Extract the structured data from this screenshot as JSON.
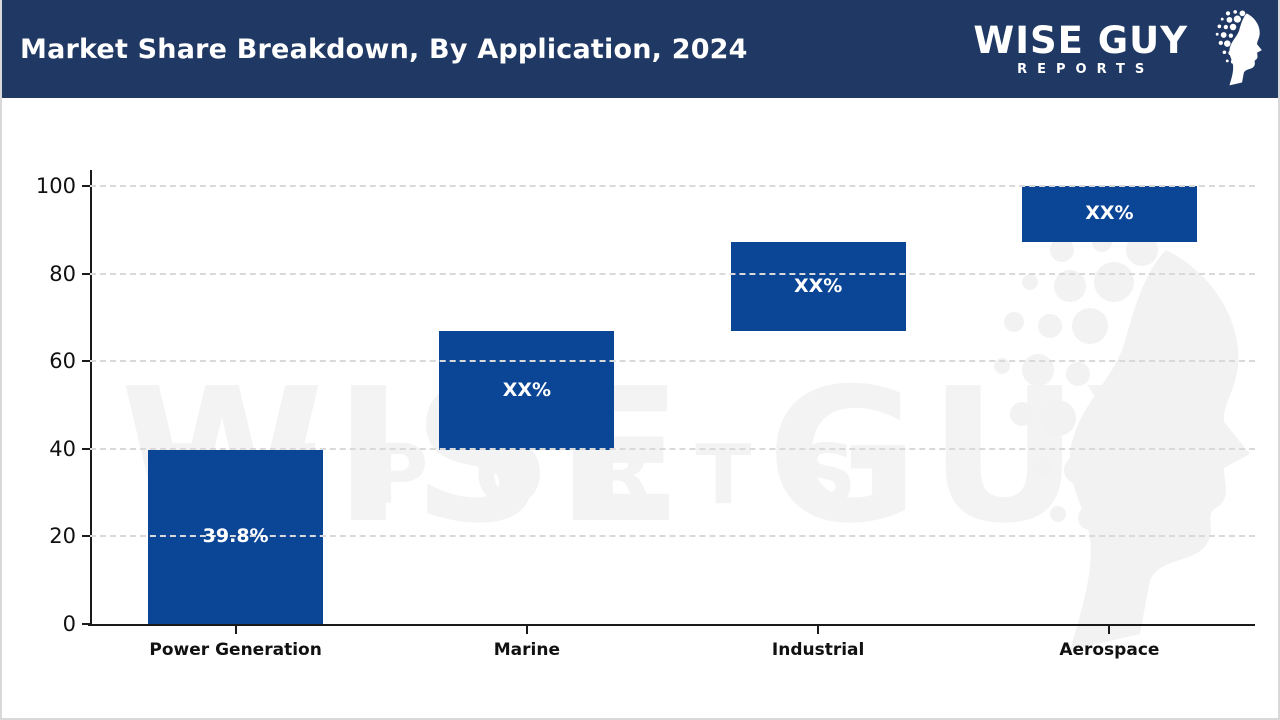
{
  "header": {
    "title": "Market Share Breakdown, By Application, 2024",
    "bg_color": "#1f3864",
    "logo": {
      "line1": "WISE GUY",
      "line2": "REPORTS"
    }
  },
  "watermark": {
    "line1": "WISE GUY",
    "line2": "REPORTS"
  },
  "chart_data": {
    "type": "bar",
    "subtype": "waterfall-segments",
    "title": "Market Share Breakdown, By Application, 2024",
    "categories": [
      "Power Generation",
      "Marine",
      "Industrial",
      "Aerospace"
    ],
    "segments": [
      {
        "category": "Power Generation",
        "start": 0,
        "end": 39.8,
        "label": "39.8%"
      },
      {
        "category": "Marine",
        "start": 39.8,
        "end": 66.8,
        "label": "XX%"
      },
      {
        "category": "Industrial",
        "start": 66.8,
        "end": 87.2,
        "label": "XX%"
      },
      {
        "category": "Aerospace",
        "start": 87.2,
        "end": 100,
        "label": "XX%"
      }
    ],
    "yticks": [
      0,
      20,
      40,
      60,
      80,
      100
    ],
    "ylim": [
      0,
      100
    ],
    "xlabel": "",
    "ylabel": "",
    "legend": "none",
    "grid": "horizontal-dashed-above-bars",
    "bar_color": "#0b4596",
    "bar_label_color": "#ffffff",
    "axis_color": "#1a1a1a"
  }
}
